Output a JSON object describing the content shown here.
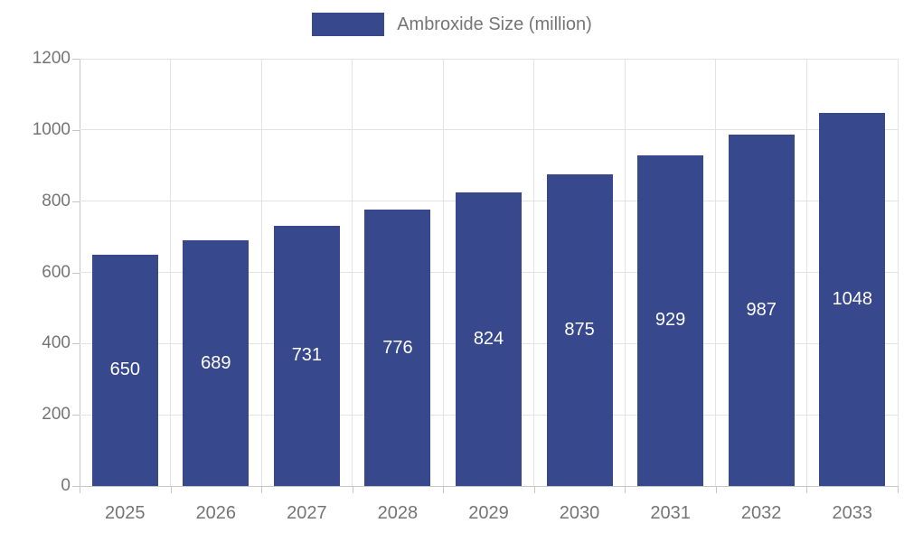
{
  "legend": {
    "label": "Ambroxide Size (million)",
    "swatch_color": "#37488C"
  },
  "colors": {
    "bar": "#37488C",
    "bar_label": "#ffffff",
    "axis_line": "#c5c5cc",
    "gridline": "#e3e3e3",
    "axis_text": "#757575",
    "background": "#ffffff"
  },
  "chart_data": {
    "type": "bar",
    "title": "",
    "xlabel": "",
    "ylabel": "",
    "series_name": "Ambroxide Size (million)",
    "categories": [
      "2025",
      "2026",
      "2027",
      "2028",
      "2029",
      "2030",
      "2031",
      "2032",
      "2033"
    ],
    "values": [
      650,
      689,
      731,
      776,
      824,
      875,
      929,
      987,
      1048
    ],
    "ylim": [
      0,
      1200
    ],
    "yticks": [
      0,
      200,
      400,
      600,
      800,
      1000,
      1200
    ],
    "grid": true,
    "legend_position": "top",
    "bar_labels_inside": true
  }
}
